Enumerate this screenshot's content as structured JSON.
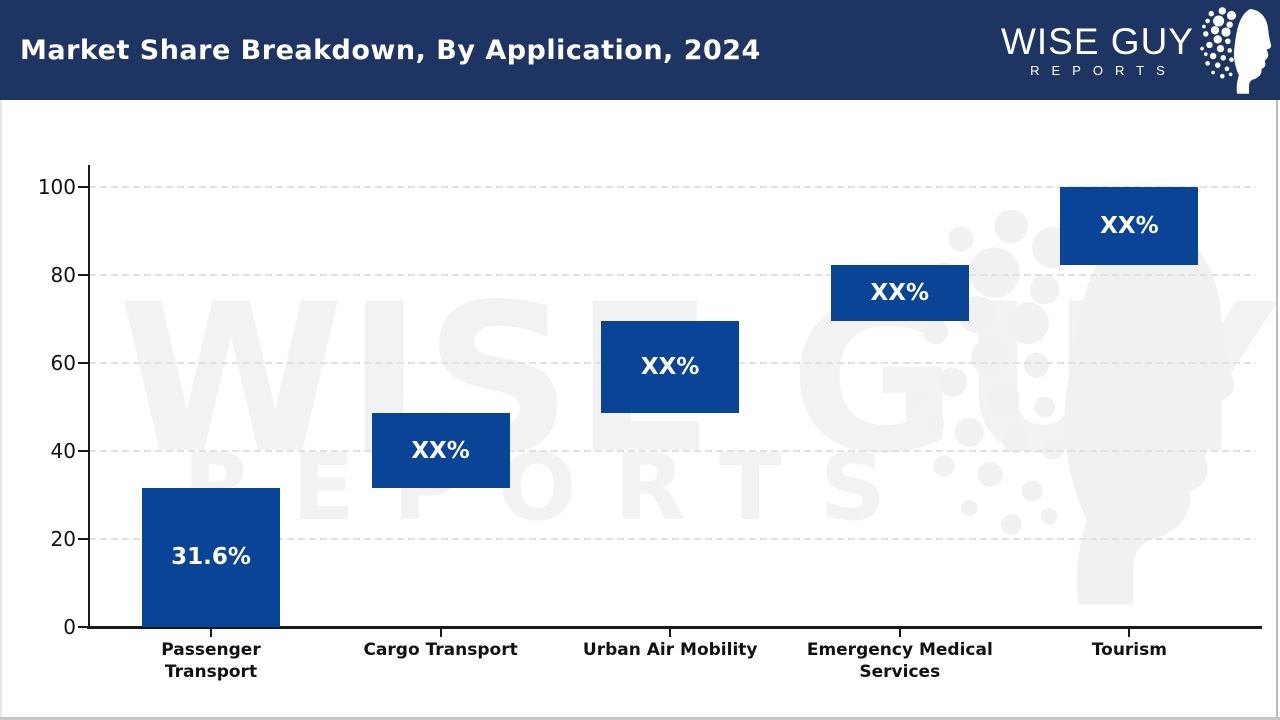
{
  "header": {
    "title": "Market Share Breakdown, By Application, 2024",
    "logo": {
      "line1": "WISE GUY",
      "line2": "REPORTS"
    }
  },
  "watermark": {
    "line1": "WISE GUY",
    "line2": "REPORTS"
  },
  "chart_data": {
    "type": "bar",
    "subtype": "waterfall",
    "title": "Market Share Breakdown, By Application, 2024",
    "categories": [
      "Passenger Transport",
      "Cargo Transport",
      "Urban Air Mobility",
      "Emergency Medical Services",
      "Tourism"
    ],
    "display_categories": [
      "Passenger\nTransport",
      "Cargo Transport",
      "Urban Air Mobility",
      "Emergency Medical\nServices",
      "Tourism"
    ],
    "segments": [
      {
        "category": "Passenger Transport",
        "start": 0,
        "end": 31.6,
        "label": "31.6%"
      },
      {
        "category": "Cargo Transport",
        "start": 31.6,
        "end": 48.6,
        "label": "XX%"
      },
      {
        "category": "Urban Air Mobility",
        "start": 48.6,
        "end": 69.6,
        "label": "XX%"
      },
      {
        "category": "Emergency Medical Services",
        "start": 69.6,
        "end": 82.2,
        "label": "XX%"
      },
      {
        "category": "Tourism",
        "start": 82.2,
        "end": 100,
        "label": "XX%"
      }
    ],
    "values": [
      31.6,
      17.0,
      21.0,
      12.6,
      17.8
    ],
    "yticks": [
      0,
      20,
      40,
      60,
      80,
      100
    ],
    "ylim": [
      0,
      105
    ],
    "xlabel": "",
    "ylabel": "",
    "grid": true,
    "legend": false,
    "bar_color": "#0a4496",
    "bar_label_color": "#ffffff"
  },
  "colors": {
    "header_bg": "#1e3563",
    "bar": "#0a4496",
    "axis": "#1a1a1a",
    "gridline": "#e1e1e1",
    "watermark": "#f2f2f2"
  }
}
